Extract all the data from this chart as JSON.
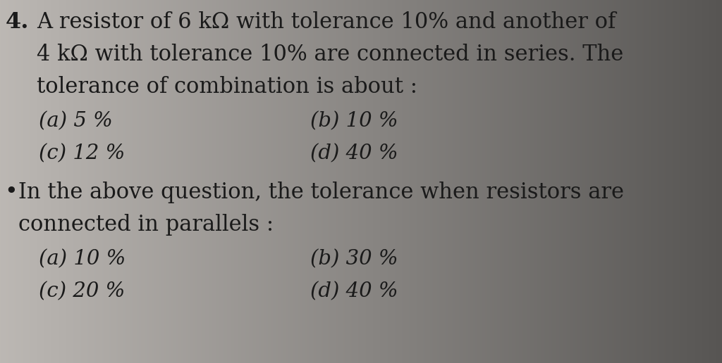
{
  "background_color": "#d0d0d0",
  "text_color": "#1a1a1a",
  "question4_number": "4.",
  "question4_line1": "A resistor of 6 kΩ with tolerance 10% and another of",
  "question4_line2": "4 kΩ with tolerance 10% are connected in series. The",
  "question4_line3": "tolerance of combination is about :",
  "q4_opt_a": "(a) 5 %",
  "q4_opt_b": "(b) 10 %",
  "q4_opt_c": "(c) 12 %",
  "q4_opt_d": "(d) 40 %",
  "bullet": "•",
  "question5_line1": "In the above question, the tolerance when resistors are",
  "question5_line2": "connected in parallels :",
  "q5_opt_a": "(a) 10 %",
  "q5_opt_b": "(b) 30 %",
  "q5_opt_c": "(c) 20 %",
  "q5_opt_d": "(d) 40 %",
  "fontsize_main": 22,
  "fontsize_opts": 21,
  "fontsize_number": 23
}
